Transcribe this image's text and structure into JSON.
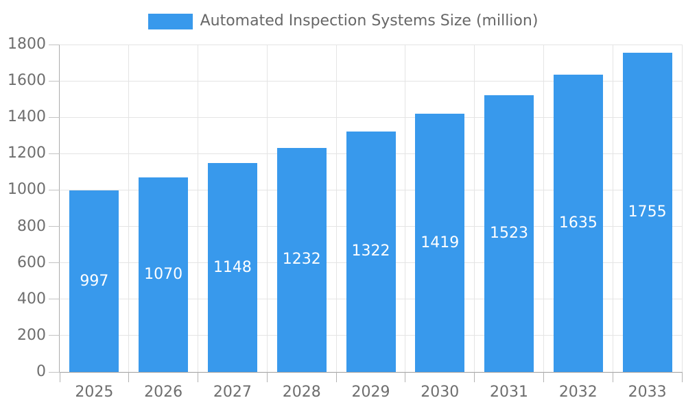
{
  "legend": {
    "label": "Automated Inspection Systems Size (million)",
    "swatch_color": "#3899ec"
  },
  "chart_data": {
    "type": "bar",
    "title": "Automated Inspection Systems Size (million)",
    "categories": [
      "2025",
      "2026",
      "2027",
      "2028",
      "2029",
      "2030",
      "2031",
      "2032",
      "2033"
    ],
    "series": [
      {
        "name": "Automated Inspection Systems Size (million)",
        "values": [
          997,
          1070,
          1148,
          1232,
          1322,
          1419,
          1523,
          1635,
          1755
        ]
      }
    ],
    "xlabel": "",
    "ylabel": "",
    "ylim": [
      0,
      1800
    ],
    "y_ticks": [
      0,
      200,
      400,
      600,
      800,
      1000,
      1200,
      1400,
      1600,
      1800
    ],
    "grid": true,
    "legend_position": "top-center",
    "bar_value_labels": "inside-center",
    "colors": {
      "bar": "#3899ec",
      "bar_label_text": "#ffffff",
      "axis_text": "#6e6e6e",
      "legend_text": "#676767",
      "axis_line": "#a8a8a8",
      "gridline": "#e4e4e4",
      "background": "#ffffff"
    }
  }
}
